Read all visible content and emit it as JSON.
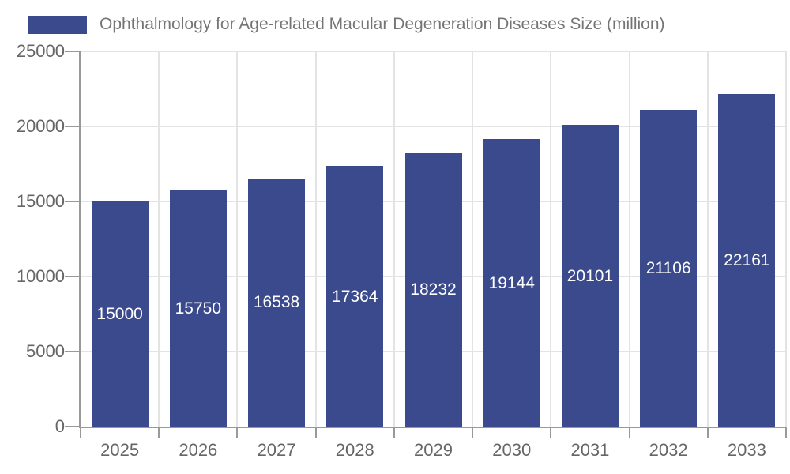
{
  "legend": {
    "label": "Ophthalmology for Age-related Macular Degeneration Diseases Size (million)"
  },
  "colors": {
    "bar": "#3A4A8C",
    "grid": "#E3E3E3",
    "axis": "#999999",
    "axis_label": "#666666",
    "legend_text": "#757575",
    "bar_label": "#FFFFFF",
    "background": "#FFFFFF"
  },
  "chart_data": {
    "type": "bar",
    "categories": [
      "2025",
      "2026",
      "2027",
      "2028",
      "2029",
      "2030",
      "2031",
      "2032",
      "2033"
    ],
    "values": [
      15000,
      15750,
      16538,
      17364,
      18232,
      19144,
      20101,
      21106,
      22161
    ],
    "series_name": "Ophthalmology for Age-related Macular Degeneration Diseases Size (million)",
    "title": "",
    "xlabel": "",
    "ylabel": "",
    "ylim": [
      0,
      25000
    ],
    "yticks": [
      0,
      5000,
      10000,
      15000,
      20000,
      25000
    ],
    "grid": true,
    "legend_position": "top-left",
    "bar_value_labels": "inside-center"
  }
}
